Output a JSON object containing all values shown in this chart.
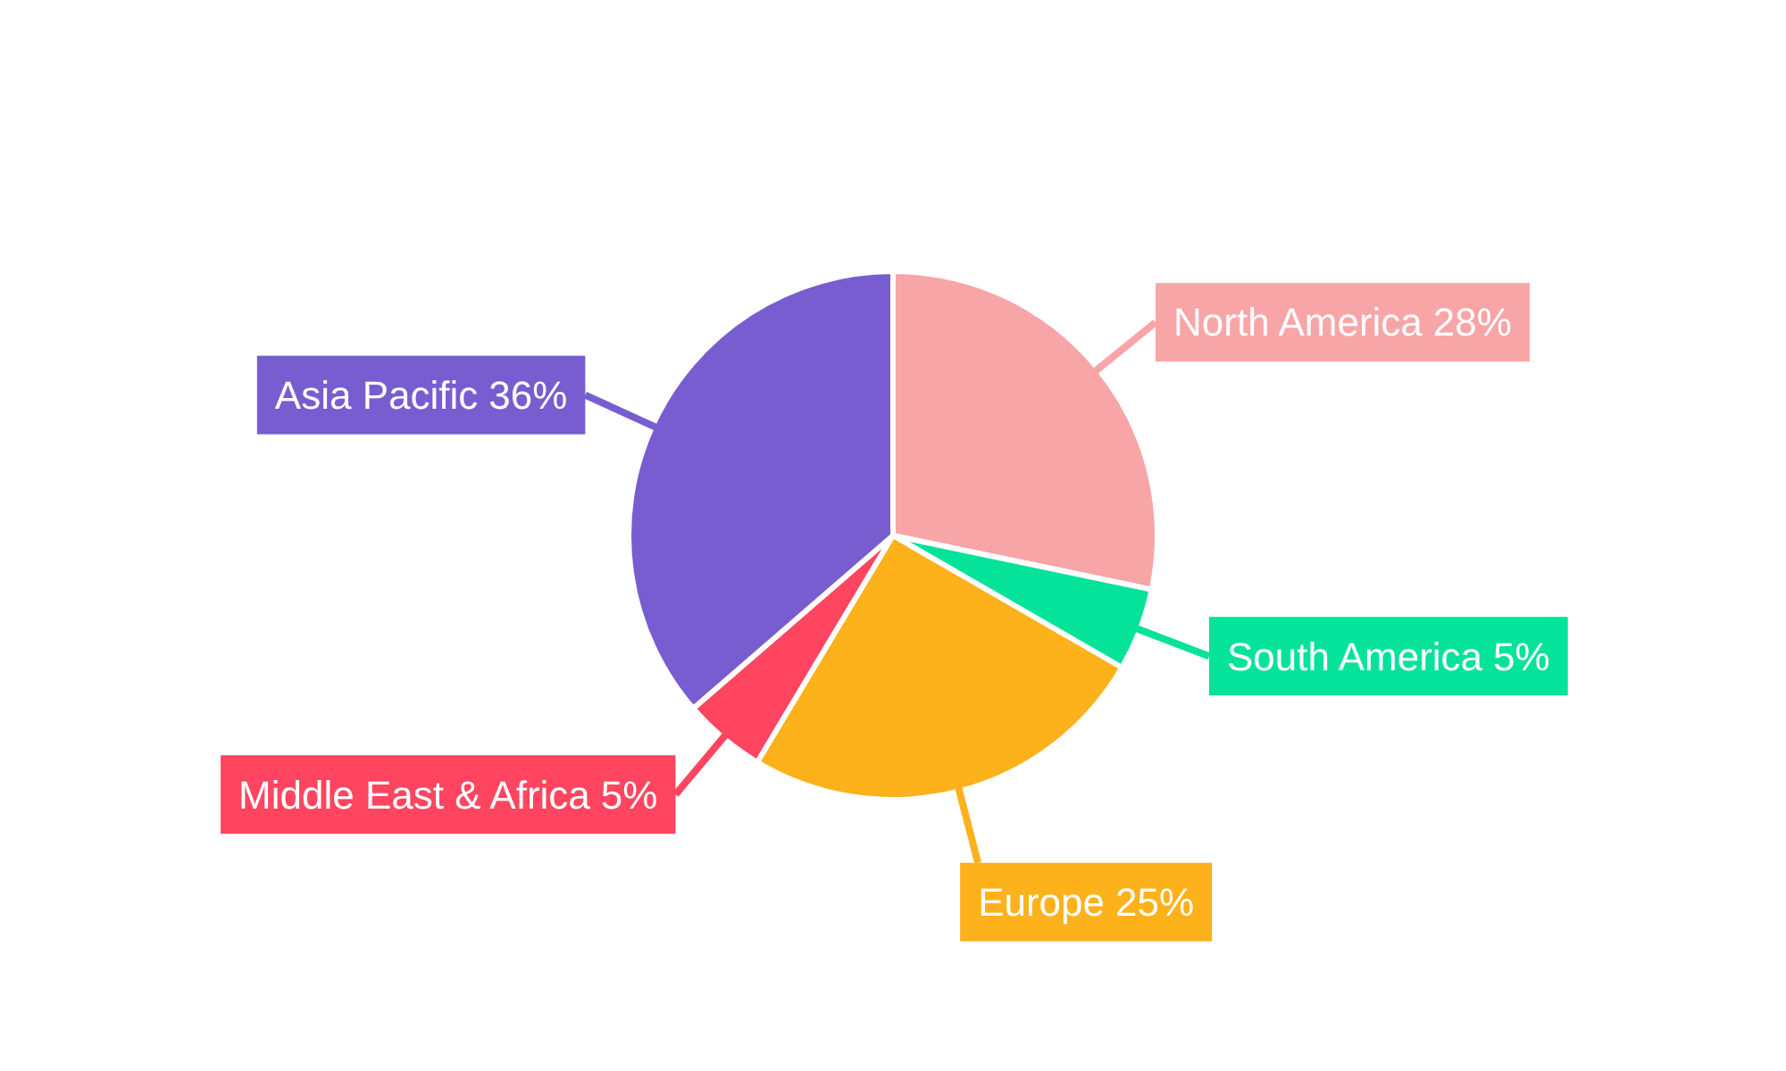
{
  "chart_data": {
    "type": "pie",
    "categories": [
      "North America",
      "South America",
      "Europe",
      "Middle East & Africa",
      "Asia Pacific"
    ],
    "values": [
      28,
      5,
      25,
      5,
      36
    ],
    "colors": [
      "#f8a5a8",
      "#05e39a",
      "#fdb11b",
      "#ff4560",
      "#775dd0"
    ],
    "value_labels": [
      "28%",
      "5%",
      "25%",
      "5%",
      "36%"
    ]
  }
}
